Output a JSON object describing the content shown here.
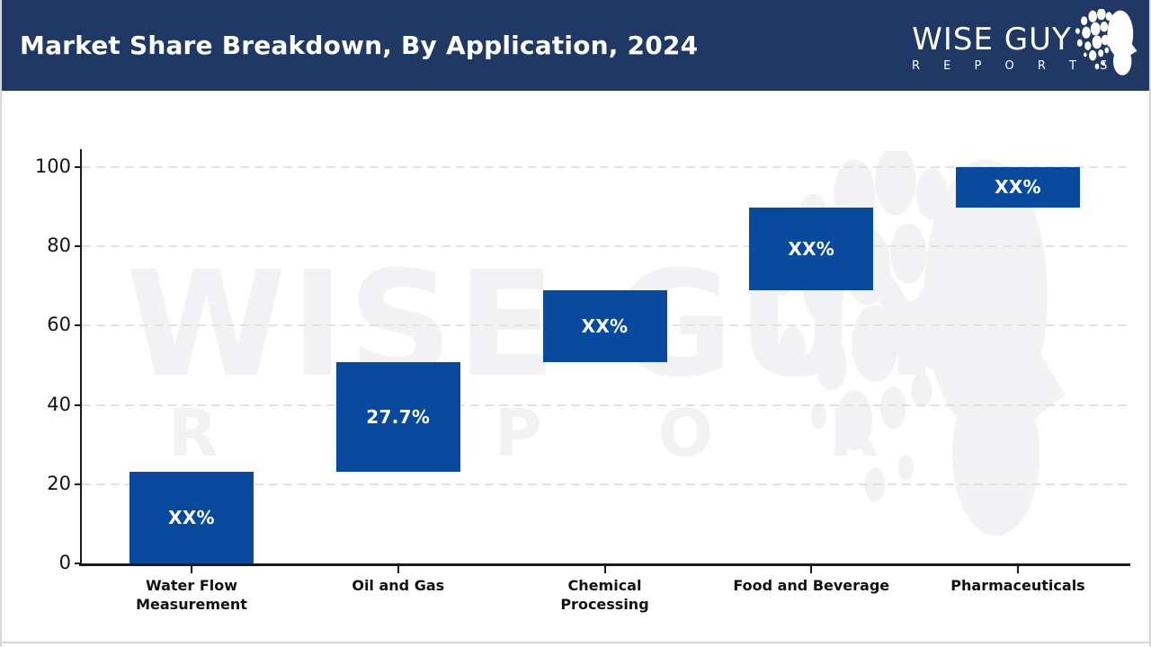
{
  "header": {
    "title": "Market Share Breakdown, By Application, 2024",
    "logo": {
      "line1": "WISE GUY",
      "line2": "R E P O R T S"
    }
  },
  "watermark": {
    "line1": "WISE GUY",
    "line2": "R E P O R T S"
  },
  "colors": {
    "header_bg": "#1f3864",
    "bar_blue": "#084a9e",
    "grid_gray": "#e1e1e1",
    "watermark_gray": "#f2f2f5",
    "axis_black": "#1a1a1a",
    "frame_gray": "#d8d8d8",
    "bar_label_white": "#ffffff"
  },
  "chart_data": {
    "type": "bar",
    "subtype": "floating-waterfall",
    "title": "Market Share Breakdown, By Application, 2024",
    "categories": [
      "Water Flow\nMeasurement",
      "Oil and Gas",
      "Chemical\nProcessing",
      "Food and Beverage",
      "Pharmaceuticals"
    ],
    "segments": [
      {
        "category": "Water Flow Measurement",
        "start": 0,
        "end": 23.2,
        "height_pct": 23.2,
        "label": "XX%"
      },
      {
        "category": "Oil and Gas",
        "start": 23.2,
        "end": 50.9,
        "height_pct": 27.7,
        "label": "27.7%"
      },
      {
        "category": "Chemical Processing",
        "start": 50.9,
        "end": 69.0,
        "height_pct": 18.1,
        "label": "XX%"
      },
      {
        "category": "Food and Beverage",
        "start": 69.0,
        "end": 89.8,
        "height_pct": 20.8,
        "label": "XX%"
      },
      {
        "category": "Pharmaceuticals",
        "start": 89.8,
        "end": 100,
        "height_pct": 10.2,
        "label": "XX%"
      }
    ],
    "xlabel": "",
    "ylabel": "",
    "ylim": [
      0,
      100
    ],
    "yticks": [
      0,
      20,
      40,
      60,
      80,
      100
    ],
    "grid": "horizontal dashed",
    "legend": "none",
    "bar_color": "#084a9e",
    "bar_value_label_position": "center"
  }
}
